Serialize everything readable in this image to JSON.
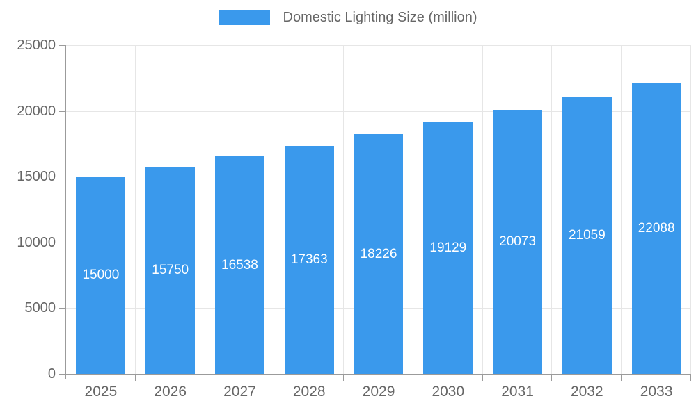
{
  "chart_data": {
    "type": "bar",
    "title": "",
    "legend": {
      "label": "Domestic Lighting Size (million)",
      "position": "top"
    },
    "categories": [
      "2025",
      "2026",
      "2027",
      "2028",
      "2029",
      "2030",
      "2031",
      "2032",
      "2033"
    ],
    "series": [
      {
        "name": "Domestic Lighting Size (million)",
        "values": [
          15000,
          15750,
          16538,
          17363,
          18226,
          19129,
          20073,
          21059,
          22088
        ]
      }
    ],
    "bar_value_labels": [
      "15000",
      "15750",
      "16538",
      "17363",
      "18226",
      "19129",
      "20073",
      "21059",
      "22088"
    ],
    "xlabel": "",
    "ylabel": "",
    "ylim": [
      0,
      25000
    ],
    "yticks": [
      0,
      5000,
      10000,
      15000,
      20000,
      25000
    ],
    "ytick_labels": [
      "0",
      "5000",
      "10000",
      "15000",
      "20000",
      "25000"
    ],
    "grid": true,
    "colors": {
      "bar": "#3a99ec",
      "grid": "#e6e6e6",
      "axis": "#9b9b9b",
      "axis_text": "#666666",
      "bar_label_text": "#ffffff"
    }
  }
}
